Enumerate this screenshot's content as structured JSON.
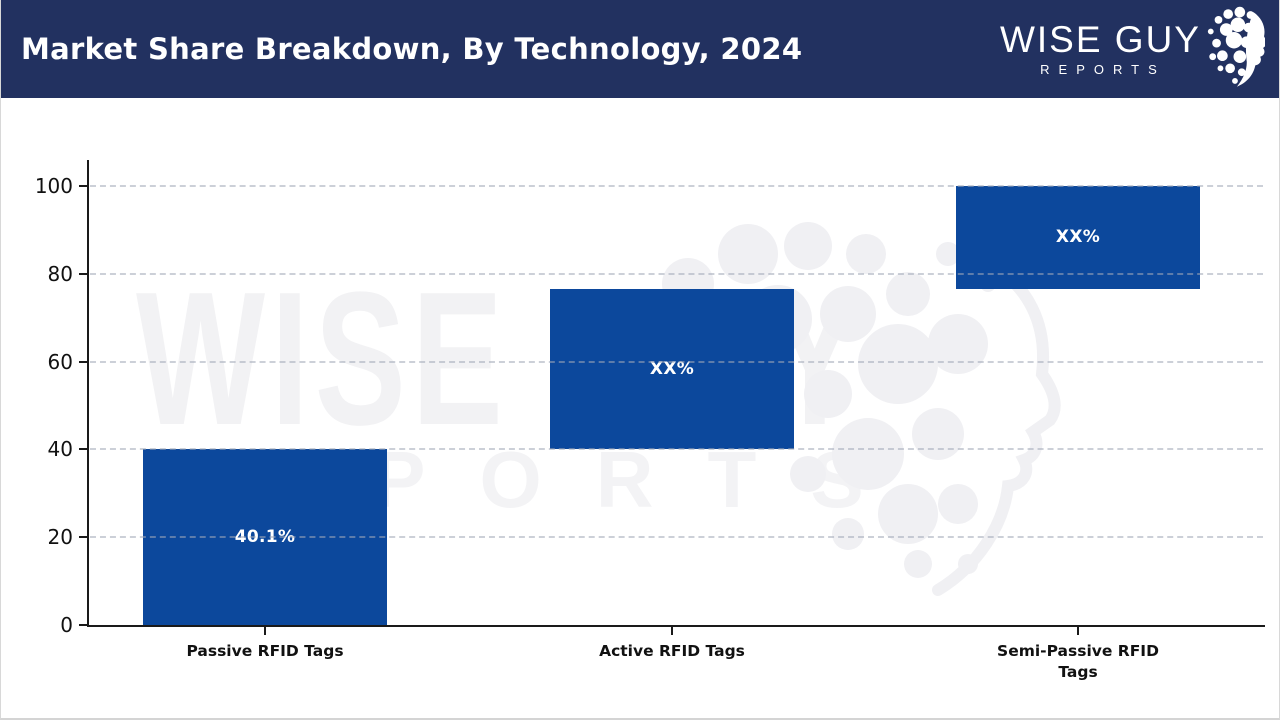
{
  "page": {
    "background": "#ffffff",
    "border_color": "#d8d8d8"
  },
  "header": {
    "background": "#223160",
    "title": "Market Share Breakdown, By Technology, 2024",
    "logo": {
      "line1": "WISE GUY",
      "line2": "REPORTS"
    }
  },
  "watermark": {
    "line1": "WISE GUY",
    "line2": "REPORTS"
  },
  "chart_data": {
    "type": "bar",
    "variant": "floating-waterfall",
    "title": "Market Share Breakdown, By Technology, 2024",
    "categories": [
      "Passive RFID Tags",
      "Active RFID Tags",
      "Semi-Passive RFID Tags"
    ],
    "segments": [
      {
        "category": "Passive RFID Tags",
        "start": 0,
        "end": 40.1,
        "label": "40.1%"
      },
      {
        "category": "Active RFID Tags",
        "start": 40.1,
        "end": 76.6,
        "label": "XX%"
      },
      {
        "category": "Semi-Passive RFID Tags",
        "start": 76.6,
        "end": 100,
        "label": "XX%"
      }
    ],
    "yticks": [
      0,
      20,
      40,
      60,
      80,
      100
    ],
    "ylim": [
      0,
      106
    ],
    "xlabel": "",
    "ylabel": "",
    "bar_color": "#0c489c",
    "bar_label_color": "#ffffff",
    "grid": true,
    "grid_style": "dashed",
    "legend": false
  }
}
